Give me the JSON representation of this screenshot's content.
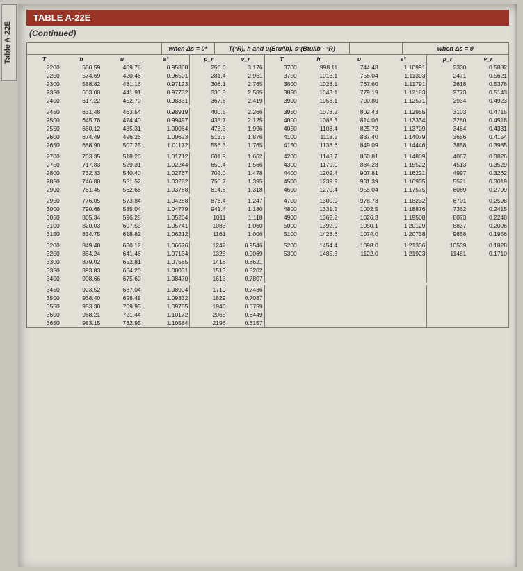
{
  "tab_label": "Table A-22E",
  "title": "TABLE A-22E",
  "subtitle": "(Continued)",
  "units_header": "T(°R), h and u(Btu/lb), s°(Btu/lb · °R)",
  "delta_s_hdr_left": "when Δs = 0*",
  "delta_s_hdr_right": "when Δs = 0",
  "col_headers": {
    "T": "T",
    "h": "h",
    "u": "u",
    "s": "s°",
    "pr": "p_r",
    "vr": "v_r"
  },
  "groups": [
    {
      "left": [
        {
          "T": "2200",
          "h": "560.59",
          "u": "409.78",
          "s": "0.95868",
          "pr": "256.6",
          "vr": "3.176"
        },
        {
          "T": "2250",
          "h": "574.69",
          "u": "420.46",
          "s": "0.96501",
          "pr": "281.4",
          "vr": "2.961"
        },
        {
          "T": "2300",
          "h": "588.82",
          "u": "431.16",
          "s": "0.97123",
          "pr": "308.1",
          "vr": "2.765"
        },
        {
          "T": "2350",
          "h": "603.00",
          "u": "441.91",
          "s": "0.97732",
          "pr": "336.8",
          "vr": "2.585"
        },
        {
          "T": "2400",
          "h": "617.22",
          "u": "452.70",
          "s": "0.98331",
          "pr": "367.6",
          "vr": "2.419"
        }
      ],
      "right": [
        {
          "T": "3700",
          "h": "998.11",
          "u": "744.48",
          "s": "1.10991",
          "pr": "2330",
          "vr": "0.5882"
        },
        {
          "T": "3750",
          "h": "1013.1",
          "u": "756.04",
          "s": "1.11393",
          "pr": "2471",
          "vr": "0.5621"
        },
        {
          "T": "3800",
          "h": "1028.1",
          "u": "767.60",
          "s": "1.11791",
          "pr": "2618",
          "vr": "0.5376"
        },
        {
          "T": "3850",
          "h": "1043.1",
          "u": "779.19",
          "s": "1.12183",
          "pr": "2773",
          "vr": "0.5143"
        },
        {
          "T": "3900",
          "h": "1058.1",
          "u": "790.80",
          "s": "1.12571",
          "pr": "2934",
          "vr": "0.4923"
        }
      ]
    },
    {
      "left": [
        {
          "T": "2450",
          "h": "631.48",
          "u": "463.54",
          "s": "0.98919",
          "pr": "400.5",
          "vr": "2.266"
        },
        {
          "T": "2500",
          "h": "645.78",
          "u": "474.40",
          "s": "0.99497",
          "pr": "435.7",
          "vr": "2.125"
        },
        {
          "T": "2550",
          "h": "660.12",
          "u": "485.31",
          "s": "1.00064",
          "pr": "473.3",
          "vr": "1.996"
        },
        {
          "T": "2600",
          "h": "674.49",
          "u": "496.26",
          "s": "1.00623",
          "pr": "513.5",
          "vr": "1.876"
        },
        {
          "T": "2650",
          "h": "688.90",
          "u": "507.25",
          "s": "1.01172",
          "pr": "556.3",
          "vr": "1.765"
        }
      ],
      "right": [
        {
          "T": "3950",
          "h": "1073.2",
          "u": "802.43",
          "s": "1.12955",
          "pr": "3103",
          "vr": "0.4715"
        },
        {
          "T": "4000",
          "h": "1088.3",
          "u": "814.06",
          "s": "1.13334",
          "pr": "3280",
          "vr": "0.4518"
        },
        {
          "T": "4050",
          "h": "1103.4",
          "u": "825.72",
          "s": "1.13709",
          "pr": "3464",
          "vr": "0.4331"
        },
        {
          "T": "4100",
          "h": "1118.5",
          "u": "837.40",
          "s": "1.14079",
          "pr": "3656",
          "vr": "0.4154"
        },
        {
          "T": "4150",
          "h": "1133.6",
          "u": "849.09",
          "s": "1.14446",
          "pr": "3858",
          "vr": "0.3985"
        }
      ]
    },
    {
      "left": [
        {
          "T": "2700",
          "h": "703.35",
          "u": "518.26",
          "s": "1.01712",
          "pr": "601.9",
          "vr": "1.662"
        },
        {
          "T": "2750",
          "h": "717.83",
          "u": "529.31",
          "s": "1.02244",
          "pr": "650.4",
          "vr": "1.566"
        },
        {
          "T": "2800",
          "h": "732.33",
          "u": "540.40",
          "s": "1.02767",
          "pr": "702.0",
          "vr": "1.478"
        },
        {
          "T": "2850",
          "h": "746.88",
          "u": "551.52",
          "s": "1.03282",
          "pr": "756.7",
          "vr": "1.395"
        },
        {
          "T": "2900",
          "h": "761.45",
          "u": "562.66",
          "s": "1.03788",
          "pr": "814.8",
          "vr": "1.318"
        }
      ],
      "right": [
        {
          "T": "4200",
          "h": "1148.7",
          "u": "860.81",
          "s": "1.14809",
          "pr": "4067",
          "vr": "0.3826"
        },
        {
          "T": "4300",
          "h": "1179.0",
          "u": "884.28",
          "s": "1.15522",
          "pr": "4513",
          "vr": "0.3529"
        },
        {
          "T": "4400",
          "h": "1209.4",
          "u": "907.81",
          "s": "1.16221",
          "pr": "4997",
          "vr": "0.3262"
        },
        {
          "T": "4500",
          "h": "1239.9",
          "u": "931.39",
          "s": "1.16905",
          "pr": "5521",
          "vr": "0.3019"
        },
        {
          "T": "4600",
          "h": "1270.4",
          "u": "955.04",
          "s": "1.17575",
          "pr": "6089",
          "vr": "0.2799"
        }
      ]
    },
    {
      "left": [
        {
          "T": "2950",
          "h": "776.05",
          "u": "573.84",
          "s": "1.04288",
          "pr": "876.4",
          "vr": "1.247"
        },
        {
          "T": "3000",
          "h": "790.68",
          "u": "585.04",
          "s": "1.04779",
          "pr": "941.4",
          "vr": "1.180"
        },
        {
          "T": "3050",
          "h": "805.34",
          "u": "596.28",
          "s": "1.05264",
          "pr": "1011",
          "vr": "1.118"
        },
        {
          "T": "3100",
          "h": "820.03",
          "u": "607.53",
          "s": "1.05741",
          "pr": "1083",
          "vr": "1.060"
        },
        {
          "T": "3150",
          "h": "834.75",
          "u": "618.82",
          "s": "1.06212",
          "pr": "1161",
          "vr": "1.006"
        }
      ],
      "right": [
        {
          "T": "4700",
          "h": "1300.9",
          "u": "978.73",
          "s": "1.18232",
          "pr": "6701",
          "vr": "0.2598"
        },
        {
          "T": "4800",
          "h": "1331.5",
          "u": "1002.5",
          "s": "1.18876",
          "pr": "7362",
          "vr": "0.2415"
        },
        {
          "T": "4900",
          "h": "1362.2",
          "u": "1026.3",
          "s": "1.19508",
          "pr": "8073",
          "vr": "0.2248"
        },
        {
          "T": "5000",
          "h": "1392.9",
          "u": "1050.1",
          "s": "1.20129",
          "pr": "8837",
          "vr": "0.2096"
        },
        {
          "T": "5100",
          "h": "1423.6",
          "u": "1074.0",
          "s": "1.20738",
          "pr": "9658",
          "vr": "0.1956"
        }
      ]
    },
    {
      "left": [
        {
          "T": "3200",
          "h": "849.48",
          "u": "630.12",
          "s": "1.06676",
          "pr": "1242",
          "vr": "0.9546"
        },
        {
          "T": "3250",
          "h": "864.24",
          "u": "641.46",
          "s": "1.07134",
          "pr": "1328",
          "vr": "0.9069"
        },
        {
          "T": "3300",
          "h": "879.02",
          "u": "652.81",
          "s": "1.07585",
          "pr": "1418",
          "vr": "0.8621"
        },
        {
          "T": "3350",
          "h": "893.83",
          "u": "664.20",
          "s": "1.08031",
          "pr": "1513",
          "vr": "0.8202"
        },
        {
          "T": "3400",
          "h": "908.66",
          "u": "675.60",
          "s": "1.08470",
          "pr": "1613",
          "vr": "0.7807"
        }
      ],
      "right": [
        {
          "T": "5200",
          "h": "1454.4",
          "u": "1098.0",
          "s": "1.21336",
          "pr": "10539",
          "vr": "0.1828"
        },
        {
          "T": "5300",
          "h": "1485.3",
          "u": "1122.0",
          "s": "1.21923",
          "pr": "11481",
          "vr": "0.1710"
        }
      ]
    },
    {
      "left": [
        {
          "T": "3450",
          "h": "923.52",
          "u": "687.04",
          "s": "1.08904",
          "pr": "1719",
          "vr": "0.7436"
        },
        {
          "T": "3500",
          "h": "938.40",
          "u": "698.48",
          "s": "1.09332",
          "pr": "1829",
          "vr": "0.7087"
        },
        {
          "T": "3550",
          "h": "953.30",
          "u": "709.95",
          "s": "1.09755",
          "pr": "1946",
          "vr": "0.6759"
        },
        {
          "T": "3600",
          "h": "968.21",
          "u": "721.44",
          "s": "1.10172",
          "pr": "2068",
          "vr": "0.6449"
        },
        {
          "T": "3650",
          "h": "983.15",
          "u": "732.95",
          "s": "1.10584",
          "pr": "2196",
          "vr": "0.6157"
        }
      ],
      "right": []
    }
  ]
}
